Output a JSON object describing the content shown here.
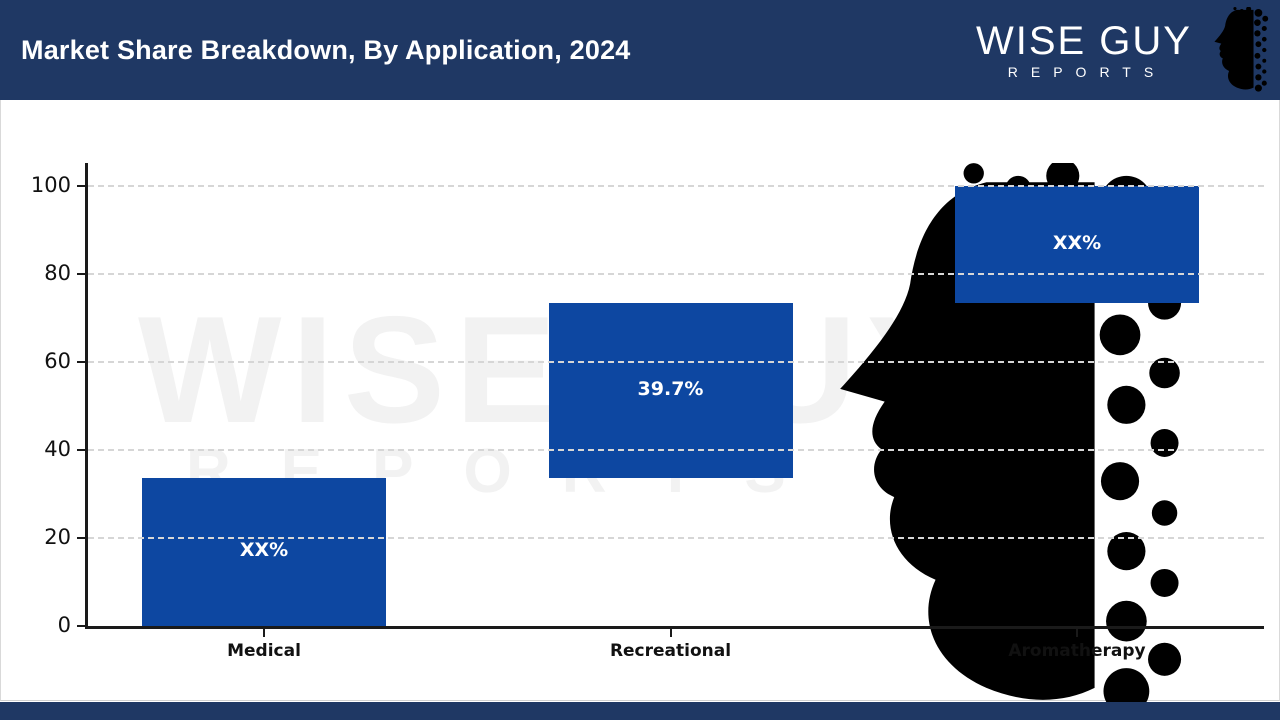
{
  "header": {
    "title": "Market Share Breakdown, By Application, 2024",
    "logo": {
      "line1": "WISE GUY",
      "line2": "REPORTS"
    }
  },
  "watermark": {
    "line1": "WISE GUY",
    "line2": "REPORTS"
  },
  "colors": {
    "brand_navy": "#1f3864",
    "bar": "#0d47a1",
    "grid": "#d6d6d6",
    "axis": "#1a1a1a",
    "watermark": "#f2f2f2",
    "bar_label": "#ffffff"
  },
  "chart_data": {
    "type": "bar",
    "subtype": "waterfall",
    "title": "Market Share Breakdown, By Application, 2024",
    "xlabel": "",
    "ylabel": "",
    "categories": [
      "Medical",
      "Recreational",
      "Aromatherapy"
    ],
    "bars": [
      {
        "category": "Medical",
        "start": 0,
        "end": 33.6,
        "label": "XX%"
      },
      {
        "category": "Recreational",
        "start": 33.6,
        "end": 73.3,
        "label": "39.7%"
      },
      {
        "category": "Aromatherapy",
        "start": 73.3,
        "end": 100,
        "label": "XX%"
      }
    ],
    "yticks": [
      0,
      20,
      40,
      60,
      80,
      100
    ],
    "ylim": [
      0,
      105
    ],
    "grid": "horizontal-dashed-over-bars",
    "legend": null
  }
}
